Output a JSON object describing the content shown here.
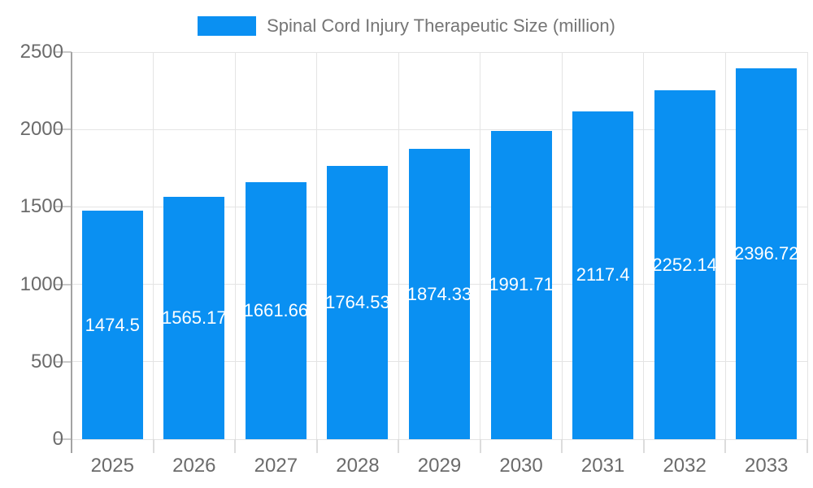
{
  "chart_data": {
    "type": "bar",
    "title": "Spinal Cord Injury Therapeutic Size (million)",
    "categories": [
      "2025",
      "2026",
      "2027",
      "2028",
      "2029",
      "2030",
      "2031",
      "2032",
      "2033"
    ],
    "values": [
      1474.5,
      1565.17,
      1661.66,
      1764.53,
      1874.33,
      1991.71,
      2117.4,
      2252.14,
      2396.72
    ],
    "value_labels": [
      "1474.5",
      "1565.17",
      "1661.66",
      "1764.53",
      "1874.33",
      "1991.71",
      "2117.4",
      "2252.14",
      "2396.72"
    ],
    "xlabel": "",
    "ylabel": "",
    "ylim": [
      0,
      2500
    ],
    "y_ticks": [
      0,
      500,
      1000,
      1500,
      2000,
      2500
    ],
    "grid": true,
    "legend_position": "top",
    "series_name": "Spinal Cord Injury Therapeutic Size (million)"
  },
  "colors": {
    "bar": "#0a90f2",
    "grid": "#e4e4e4",
    "axis": "#a3a3a3",
    "y_tick_mark": "#c9c9c9",
    "x_tick_mark": "#dcdcdc",
    "tick_text": "#6b6b6b",
    "legend_text": "#757575",
    "value_label_text": "#ffffff",
    "background": "#ffffff"
  }
}
